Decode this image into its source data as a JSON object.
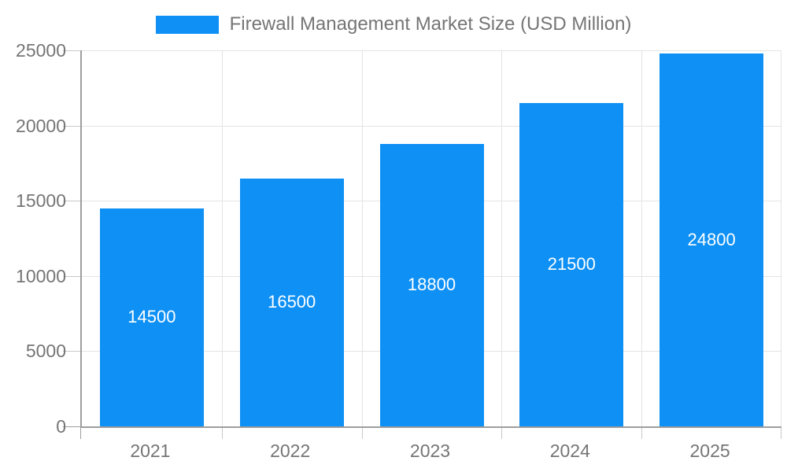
{
  "legend": {
    "swatch_color": "#0e90f5"
  },
  "colors": {
    "bar": "#0e90f5",
    "axis": "#9e9e9e",
    "tick": "#c9c9c9",
    "grid": "#e4e4e4",
    "text": "#757575",
    "bar_label": "#ffffff",
    "background": "#ffffff"
  },
  "chart_data": {
    "type": "bar",
    "title": "Firewall Management Market Size (USD Million)",
    "categories": [
      "2021",
      "2022",
      "2023",
      "2024",
      "2025"
    ],
    "values": [
      14500,
      16500,
      18800,
      21500,
      24800
    ],
    "bar_value_labels": [
      "14500",
      "16500",
      "18800",
      "21500",
      "24800"
    ],
    "xlabel": "",
    "ylabel": "",
    "ylim": [
      0,
      25000
    ],
    "ytick_interval": 5000,
    "ytick_labels": [
      "0",
      "5000",
      "10000",
      "15000",
      "20000",
      "25000"
    ],
    "grid": true,
    "legend_position": "top-center",
    "value_labels_position": "inside-center"
  }
}
